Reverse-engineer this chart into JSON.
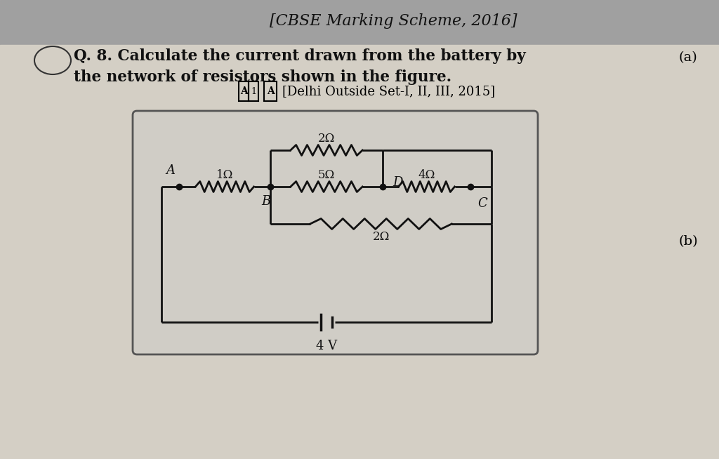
{
  "paper_color_top": "#c8c0b0",
  "paper_color_main": "#d4cfc5",
  "title": "[CBSE Marking Scheme, 2016]",
  "title_color": "#111111",
  "question_line1": "Q. 8. Calculate the current drawn from the battery by",
  "question_line2": "the network of resistors shown in the figure.",
  "question_color": "#111111",
  "ref_text": "[Delhi Outside Set-I, II, III, 2015]",
  "side_a": "(a)",
  "side_b": "(b)",
  "resistor_1ohm": "1Ω",
  "resistor_5ohm": "5Ω",
  "resistor_4ohm": "4Ω",
  "resistor_2ohm_top": "2Ω",
  "resistor_2ohm_bot": "2Ω",
  "battery_label": "4 V",
  "wire_color": "#111111",
  "circuit_box_bg": "#d0cdc6",
  "circuit_box_edge": "#555555"
}
